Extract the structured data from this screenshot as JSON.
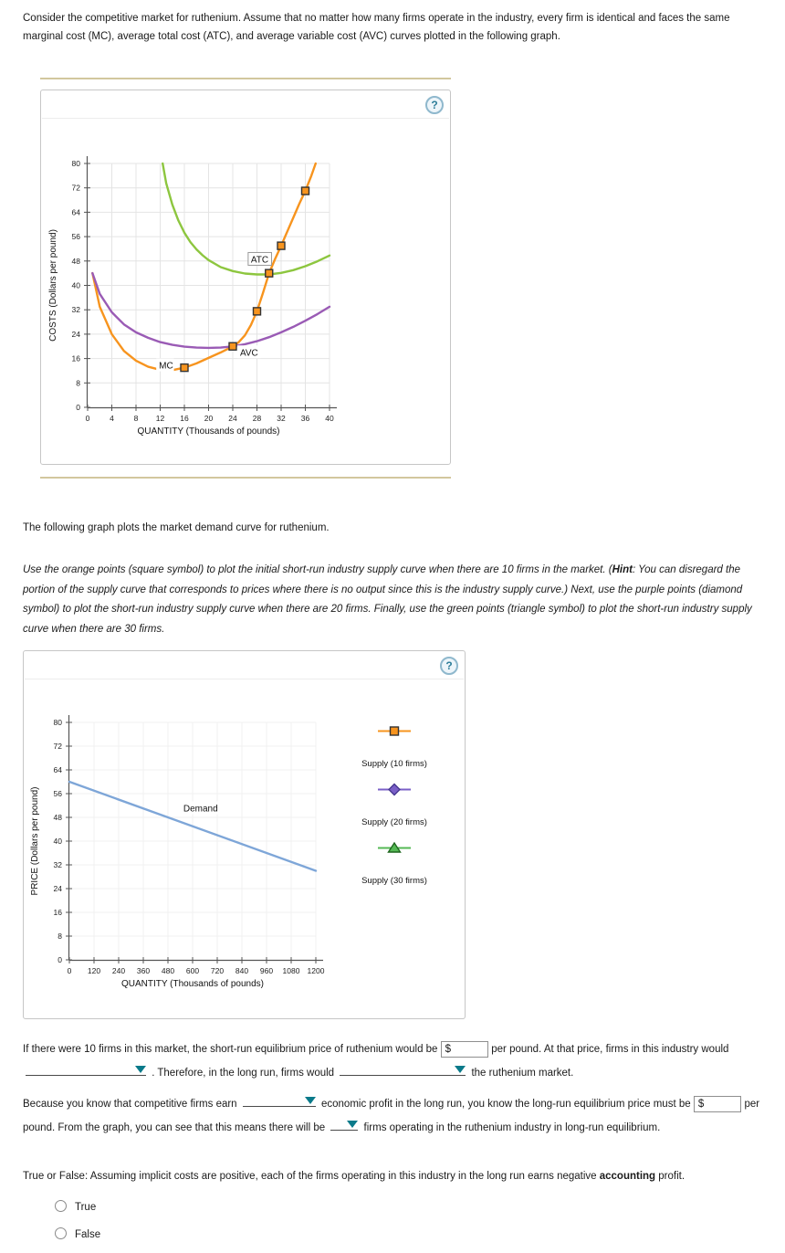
{
  "page": {
    "intro": "Consider the competitive market for ruthenium. Assume that no matter how many firms operate in the industry, every firm is identical and faces the same marginal cost (MC), average total cost (ATC), and average variable cost (AVC) curves plotted in the following graph.",
    "mid_text": "The following graph plots the market demand curve for ruthenium.",
    "instructions_pre": "Use the orange points (square symbol) to plot the initial short-run industry supply curve when there are 10 firms in the market. (",
    "instructions_hint_word": "Hint",
    "instructions_post": ": You can disregard the portion of the supply curve that corresponds to prices where there is no output since this is the industry supply curve.) Next, use the purple points (diamond symbol) to plot the short-run industry supply curve when there are 20 firms. Finally, use the green points (triangle symbol) to plot the short-run industry supply curve when there are 30 firms.",
    "help_icon": "?"
  },
  "q1": {
    "part1": "If there were 10 firms in this market, the short-run equilibrium price of ruthenium would be",
    "currency": "$",
    "price_value": "",
    "part2": "per pound. At that price, firms in this industry would",
    "part3": ". Therefore, in the long run, firms would",
    "part4": "the ruthenium market."
  },
  "q2": {
    "part1": "Because you know that competitive firms earn",
    "part2": "economic profit in the long run, you know the long-run equilibrium price must be",
    "currency": "$",
    "price_value": "",
    "part3": "per pound. From the graph, you can see that this means there will be",
    "part4": "firms operating in the ruthenium industry in long-run equilibrium."
  },
  "tf": {
    "statement_pre": "True or False: Assuming implicit costs are positive, each of the firms operating in this industry in the long run earns negative ",
    "statement_bold": "accounting",
    "statement_post": " profit.",
    "option_true": "True",
    "option_false": "False"
  },
  "chart_data": [
    {
      "type": "line",
      "title": "",
      "xlabel": "QUANTITY (Thousands of pounds)",
      "ylabel": "COSTS (Dollars per pound)",
      "xlim": [
        0,
        40
      ],
      "ylim": [
        0,
        80
      ],
      "xticks": [
        0,
        4,
        8,
        12,
        16,
        20,
        24,
        28,
        32,
        36,
        40
      ],
      "yticks": [
        0,
        8,
        16,
        24,
        32,
        40,
        48,
        56,
        64,
        72,
        80
      ],
      "grid": true,
      "series": [
        {
          "name": "MC",
          "color": "#f7941e",
          "points": [
            [
              0.8,
              44
            ],
            [
              2,
              33
            ],
            [
              4,
              24
            ],
            [
              6,
              18.5
            ],
            [
              8,
              15.3
            ],
            [
              10,
              13.3
            ],
            [
              12,
              12.3
            ],
            [
              14,
              12.2
            ],
            [
              16,
              13
            ],
            [
              18,
              14.4
            ],
            [
              20,
              16.2
            ],
            [
              22,
              18
            ],
            [
              24,
              20
            ],
            [
              25,
              21.4
            ],
            [
              26,
              23.6
            ],
            [
              27,
              27
            ],
            [
              28,
              31.5
            ],
            [
              29,
              37.5
            ],
            [
              30,
              44
            ],
            [
              31,
              48.7
            ],
            [
              32,
              53
            ],
            [
              33,
              57.6
            ],
            [
              34,
              62.2
            ],
            [
              35,
              66.8
            ],
            [
              36,
              71
            ],
            [
              37,
              76
            ],
            [
              37.7,
              80
            ]
          ],
          "marker_shape": "square",
          "marker_fill": "#f7941e",
          "marker_stroke": "#333333",
          "marker_points": [
            [
              16,
              13
            ],
            [
              24,
              20
            ],
            [
              28,
              31.5
            ],
            [
              30,
              44
            ],
            [
              32,
              53
            ],
            [
              36,
              71
            ]
          ]
        },
        {
          "name": "ATC",
          "color": "#8dc63f",
          "points": [
            [
              12.4,
              80
            ],
            [
              13,
              73.5
            ],
            [
              14,
              66.5
            ],
            [
              15,
              61.3
            ],
            [
              16,
              57.3
            ],
            [
              17,
              54.2
            ],
            [
              18,
              51.8
            ],
            [
              19,
              49.9
            ],
            [
              20,
              48.3
            ],
            [
              22,
              46
            ],
            [
              24,
              44.7
            ],
            [
              26,
              43.9
            ],
            [
              28,
              43.6
            ],
            [
              30,
              43.6
            ],
            [
              32,
              44.1
            ],
            [
              34,
              45
            ],
            [
              36,
              46.3
            ],
            [
              38,
              47.9
            ],
            [
              40,
              49.8
            ]
          ]
        },
        {
          "name": "AVC",
          "color": "#9a5bb5",
          "points": [
            [
              0.8,
              44
            ],
            [
              2,
              37.2
            ],
            [
              4,
              31.2
            ],
            [
              6,
              27.2
            ],
            [
              8,
              24.6
            ],
            [
              10,
              22.8
            ],
            [
              12,
              21.4
            ],
            [
              14,
              20.5
            ],
            [
              16,
              19.9
            ],
            [
              18,
              19.6
            ],
            [
              20,
              19.5
            ],
            [
              22,
              19.6
            ],
            [
              24,
              20
            ],
            [
              26,
              20.7
            ],
            [
              28,
              21.7
            ],
            [
              30,
              23
            ],
            [
              32,
              24.6
            ],
            [
              34,
              26.4
            ],
            [
              36,
              28.4
            ],
            [
              38,
              30.6
            ],
            [
              40,
              33
            ]
          ]
        }
      ],
      "curve_labels": [
        {
          "text": "MC",
          "x": 11.8,
          "y": 12.7,
          "boxed": false
        },
        {
          "text": "AVC",
          "x": 25.2,
          "y": 17.0,
          "boxed": false
        },
        {
          "text": "ATC",
          "x": 27.0,
          "y": 47.5,
          "boxed": true
        }
      ]
    },
    {
      "type": "line",
      "title": "",
      "xlabel": "QUANTITY (Thousands of pounds)",
      "ylabel": "PRICE (Dollars per pound)",
      "xlim": [
        0,
        1200
      ],
      "ylim": [
        0,
        80
      ],
      "xticks": [
        0,
        120,
        240,
        360,
        480,
        600,
        720,
        840,
        960,
        1080,
        1200
      ],
      "yticks": [
        0,
        8,
        16,
        24,
        32,
        40,
        48,
        56,
        64,
        72,
        80
      ],
      "grid": true,
      "series": [
        {
          "name": "Demand",
          "color": "#7ea6d8",
          "points": [
            [
              0,
              60
            ],
            [
              1200,
              30
            ]
          ]
        }
      ],
      "curve_labels": [
        {
          "text": "Demand",
          "x": 555,
          "y": 50,
          "boxed": false
        }
      ],
      "legend": [
        {
          "label": "Supply (10 firms)",
          "marker": "square",
          "color": "#f7941e",
          "stroke": "#333333"
        },
        {
          "label": "Supply (20 firms)",
          "marker": "diamond",
          "color": "#7a5fc7",
          "stroke": "#45378f"
        },
        {
          "label": "Supply (30 firms)",
          "marker": "triangle",
          "color": "#55b955",
          "stroke": "#1e661e"
        }
      ]
    }
  ]
}
